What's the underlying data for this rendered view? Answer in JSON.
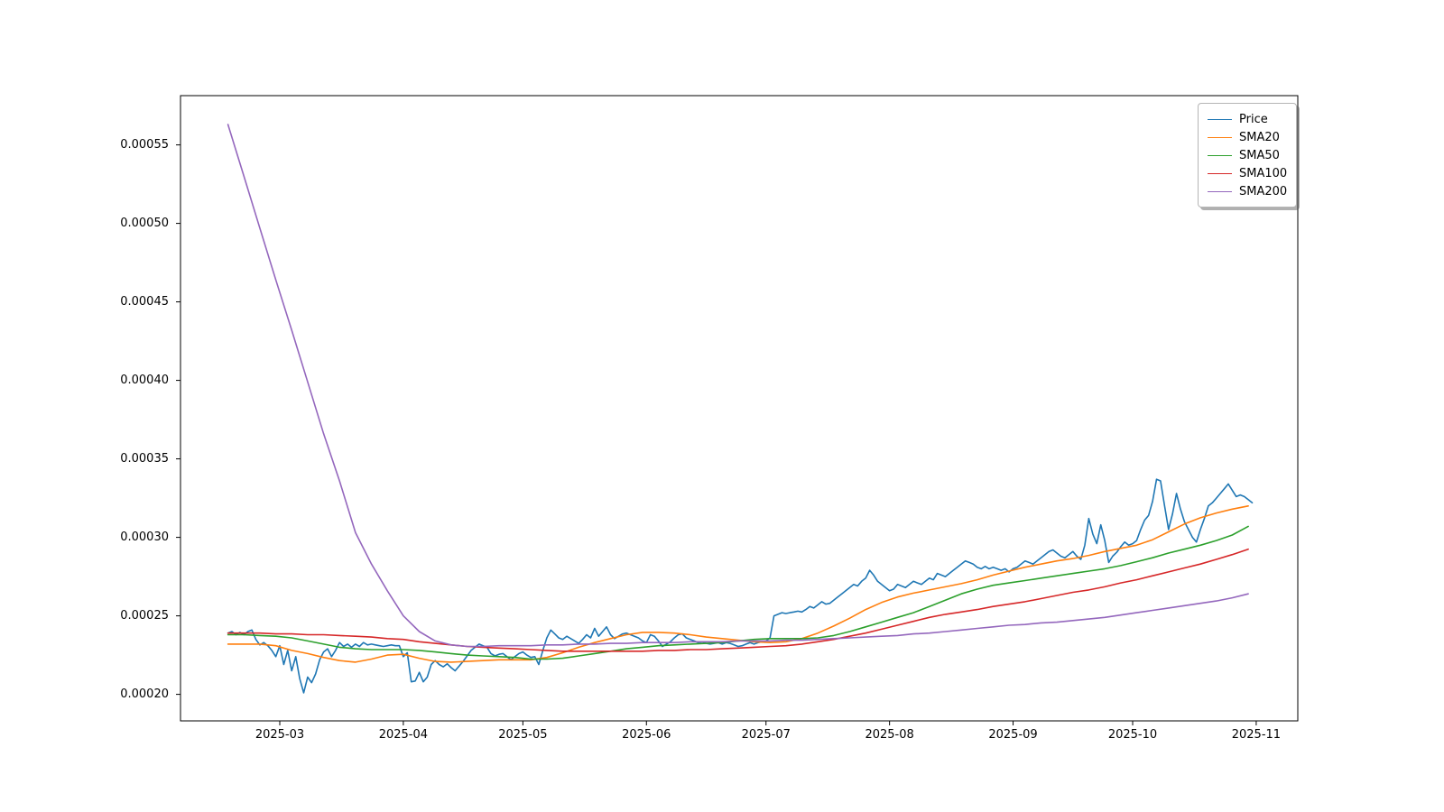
{
  "chart_data": {
    "type": "line",
    "title": "",
    "xlabel": "",
    "ylabel": "",
    "grid": false,
    "value_scale_note": "values_e6 are price values multiplied by 1e6; real value = n * 0.000001",
    "xlim": [
      "2025-02-04",
      "2025-11-11"
    ],
    "ylim": [
      0.000184,
      0.000581
    ],
    "x_axis": {
      "ticks": [
        {
          "date": "2025-03-01",
          "label": "2025-03"
        },
        {
          "date": "2025-04-01",
          "label": "2025-04"
        },
        {
          "date": "2025-05-01",
          "label": "2025-05"
        },
        {
          "date": "2025-06-01",
          "label": "2025-06"
        },
        {
          "date": "2025-07-01",
          "label": "2025-07"
        },
        {
          "date": "2025-08-01",
          "label": "2025-08"
        },
        {
          "date": "2025-09-01",
          "label": "2025-09"
        },
        {
          "date": "2025-10-01",
          "label": "2025-10"
        },
        {
          "date": "2025-11-01",
          "label": "2025-11"
        }
      ]
    },
    "y_axis": {
      "ticks": [
        {
          "value": 0.0002,
          "label": "0.00020"
        },
        {
          "value": 0.00025,
          "label": "0.00025"
        },
        {
          "value": 0.0003,
          "label": "0.00030"
        },
        {
          "value": 0.00035,
          "label": "0.00035"
        },
        {
          "value": 0.0004,
          "label": "0.00040"
        },
        {
          "value": 0.00045,
          "label": "0.00045"
        },
        {
          "value": 0.0005,
          "label": "0.00050"
        },
        {
          "value": 0.00055,
          "label": "0.00055"
        }
      ]
    },
    "legend": {
      "position": "upper right",
      "entries": [
        "Price",
        "SMA20",
        "SMA50",
        "SMA100",
        "SMA200"
      ]
    },
    "series": [
      {
        "name": "Price",
        "color": "#1f77b4",
        "start": "2025-02-16",
        "step_days": 1,
        "values_e6": [
          239,
          240,
          238,
          239.5,
          238,
          240,
          241,
          235,
          231.5,
          233,
          231,
          228,
          224,
          231,
          219,
          228,
          215,
          224,
          210,
          201,
          211,
          207.5,
          213,
          222,
          227,
          229,
          224,
          228,
          233,
          230.5,
          232,
          230,
          232,
          230.5,
          233,
          231.5,
          232,
          231.5,
          231,
          230.5,
          231,
          231.5,
          231,
          231,
          224,
          226.5,
          208,
          208.5,
          214,
          208,
          211,
          219,
          221.5,
          219,
          217.5,
          219.5,
          217,
          215,
          218,
          221,
          224.5,
          228,
          230,
          232,
          231,
          230,
          226,
          224.5,
          225.5,
          226,
          224,
          222,
          224,
          226,
          227,
          225,
          223.5,
          224,
          219,
          228,
          236,
          241,
          238.5,
          236,
          235,
          237,
          235.5,
          234,
          232.5,
          235,
          238,
          236,
          242,
          237,
          240,
          243,
          238,
          235.5,
          237,
          238.5,
          239,
          238,
          237,
          236,
          234,
          233,
          238,
          237,
          234,
          230.5,
          232,
          233.5,
          236,
          238,
          238.5,
          236,
          235,
          234,
          233,
          233.5,
          232.5,
          232,
          232.5,
          233,
          232,
          233,
          232.5,
          231.5,
          230.5,
          231,
          232,
          233,
          232,
          233,
          233.5,
          234,
          236,
          250,
          251,
          252,
          251.5,
          252,
          252.5,
          253,
          252.5,
          254,
          256,
          255,
          257,
          259,
          257.5,
          258,
          260,
          262,
          264,
          266,
          268,
          270,
          269,
          272,
          274,
          279,
          276,
          272,
          270,
          268,
          266,
          267,
          270,
          269,
          268,
          270,
          272,
          271,
          270,
          272,
          274,
          273,
          277,
          276,
          275,
          277,
          279,
          281,
          283,
          285,
          284,
          283,
          281,
          280,
          281.5,
          280,
          281,
          280,
          279,
          280,
          278,
          280,
          281,
          283,
          285,
          284,
          283,
          285,
          287,
          289,
          291,
          292,
          290,
          288,
          287,
          289,
          291,
          288,
          286,
          295,
          312,
          302,
          296,
          308,
          298,
          284,
          288,
          290.5,
          294,
          297,
          295,
          296,
          298,
          305,
          311,
          314,
          323,
          337,
          336,
          320,
          305,
          315,
          328,
          318,
          310,
          305,
          300,
          297,
          305,
          312,
          320,
          322,
          325,
          328,
          331,
          334,
          330,
          326,
          327,
          326,
          324,
          322
        ]
      },
      {
        "name": "SMA20",
        "color": "#ff7f0e",
        "start": "2025-02-16",
        "step_days": 4,
        "values_e6": [
          232,
          232,
          232,
          231,
          228,
          226,
          223.5,
          221.5,
          220.5,
          222.5,
          225,
          225.5,
          223,
          221,
          220.5,
          221,
          221.5,
          222,
          222,
          222,
          223.5,
          226.5,
          230,
          233,
          235.5,
          238,
          239.5,
          239.5,
          239,
          238,
          236.5,
          235.5,
          234.5,
          233.5,
          233,
          233.5,
          235.5,
          239,
          243.5,
          248.5,
          254,
          258.5,
          262,
          264.5,
          266.5,
          268.5,
          270.5,
          273,
          276,
          278.5,
          281,
          283,
          285,
          286.5,
          288.5,
          291,
          293,
          295,
          298.5,
          303.5,
          308.5,
          312.5,
          315.5,
          318,
          320
        ]
      },
      {
        "name": "SMA50",
        "color": "#2ca02c",
        "start": "2025-02-16",
        "step_days": 4,
        "values_e6": [
          238,
          238,
          237.5,
          237,
          236,
          234,
          232,
          230,
          229,
          228.5,
          228.5,
          228.5,
          228,
          227,
          226,
          225,
          224.5,
          224,
          223.5,
          222.5,
          222.5,
          223,
          224.5,
          226,
          227.5,
          229,
          230,
          231,
          231.5,
          232,
          232.5,
          233,
          234,
          235,
          235.5,
          235.5,
          235.5,
          236,
          237.5,
          240,
          243,
          246,
          249,
          252,
          256,
          260,
          264,
          267,
          269.5,
          271,
          272.5,
          274,
          275.5,
          277,
          278.5,
          280,
          282,
          284.5,
          287,
          290,
          292.5,
          295,
          298,
          301.5,
          307
        ]
      },
      {
        "name": "SMA100",
        "color": "#d62728",
        "start": "2025-02-16",
        "step_days": 4,
        "values_e6": [
          239,
          239,
          239,
          238.5,
          238.5,
          238,
          238,
          237.5,
          237,
          236.5,
          235.5,
          235,
          233.5,
          232.5,
          231.5,
          230.5,
          230,
          229.5,
          229,
          228.5,
          228,
          227.5,
          227.5,
          227.5,
          227.5,
          227.5,
          227.5,
          228,
          228,
          228.5,
          228.5,
          229,
          229.5,
          230,
          230.5,
          231,
          232,
          233.5,
          235,
          237,
          239,
          241.5,
          244,
          246.5,
          249,
          251,
          252.5,
          254,
          256,
          257.5,
          259,
          261,
          263,
          265,
          266.5,
          268.5,
          271,
          273,
          275.5,
          278,
          280.5,
          283,
          286,
          289,
          292.5
        ]
      },
      {
        "name": "SMA200",
        "color": "#9467bd",
        "start": "2025-02-16",
        "step_days": 4,
        "values_e6": [
          563,
          530,
          497,
          464,
          432,
          399,
          366,
          336,
          303,
          283,
          266,
          250,
          240,
          234,
          231.5,
          230.5,
          230.5,
          231,
          231,
          231,
          231.5,
          231.5,
          232,
          232,
          232.5,
          232.5,
          233,
          233,
          233,
          233.5,
          233.5,
          233.5,
          234,
          234,
          234,
          234.5,
          234.5,
          235,
          235.5,
          236,
          236.5,
          237,
          237.5,
          238.5,
          239,
          240,
          241,
          242,
          243,
          244,
          244.5,
          245.5,
          246,
          247,
          248,
          249,
          250.5,
          252,
          253.5,
          255,
          256.5,
          258,
          259.5,
          261.5,
          264
        ]
      }
    ]
  }
}
